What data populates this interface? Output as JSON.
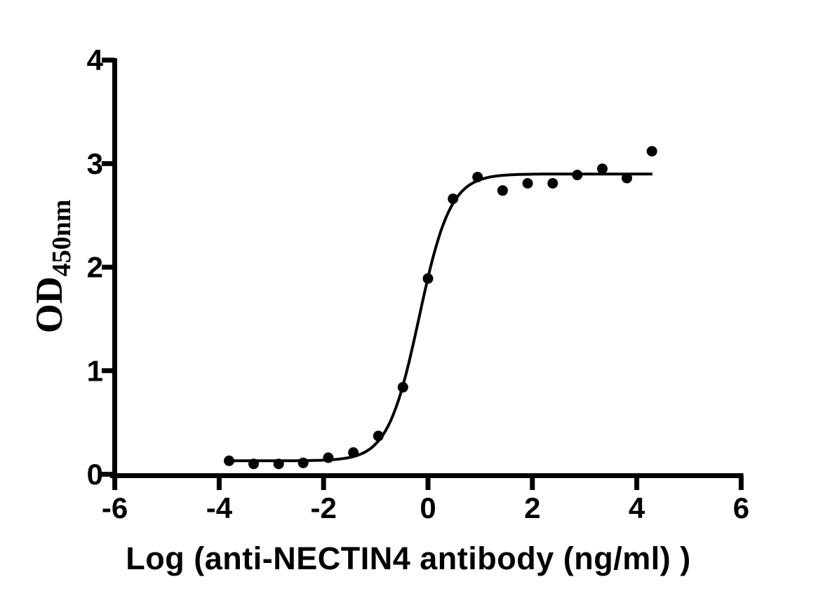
{
  "page": {
    "background_color": "#ffffff",
    "foreground_color": "#000000"
  },
  "chart_data": {
    "type": "scatter",
    "subtype": "sigmoidal-dose-response-fit",
    "title": "",
    "xlabel": "Log（anti-NECTIN4 antibody（ng/ml））",
    "xlabel_display": "Log (anti-NECTIN4 antibody (ng/ml) )",
    "ylabel": "OD450nm",
    "ylabel_main": "OD",
    "ylabel_sub": "450nm",
    "xlim": [
      -6,
      6
    ],
    "ylim": [
      0,
      4
    ],
    "x_ticks": [
      -6,
      -4,
      -2,
      0,
      2,
      4,
      6
    ],
    "x_tick_labels": [
      "-6",
      "-4",
      "-2",
      "0",
      "2",
      "4",
      "6"
    ],
    "y_ticks": [
      0,
      1,
      2,
      3,
      4
    ],
    "y_tick_labels": [
      "0",
      "1",
      "2",
      "3",
      "4"
    ],
    "grid": false,
    "legend": "none",
    "marker_shape": "filled-circle",
    "marker_color": "#000000",
    "curve_color": "#000000",
    "axis_color": "#000000",
    "series": [
      {
        "name": "anti-NECTIN4 antibody",
        "x": [
          -3.81,
          -3.34,
          -2.86,
          -2.39,
          -1.91,
          -1.43,
          -0.95,
          -0.48,
          0.0,
          0.48,
          0.95,
          1.43,
          1.91,
          2.39,
          2.86,
          3.34,
          3.81,
          4.29
        ],
        "y": [
          0.13,
          0.1,
          0.1,
          0.11,
          0.16,
          0.21,
          0.37,
          0.84,
          1.89,
          2.66,
          2.87,
          2.74,
          2.81,
          2.81,
          2.89,
          2.95,
          2.86,
          3.12
        ]
      }
    ],
    "fit_curve": {
      "model": "four-parameter-logistic",
      "bottom": 0.13,
      "top": 2.9,
      "log_ec50": -0.17,
      "hill_slope": 1.45,
      "x_start": -3.81,
      "x_end": 4.3
    }
  }
}
